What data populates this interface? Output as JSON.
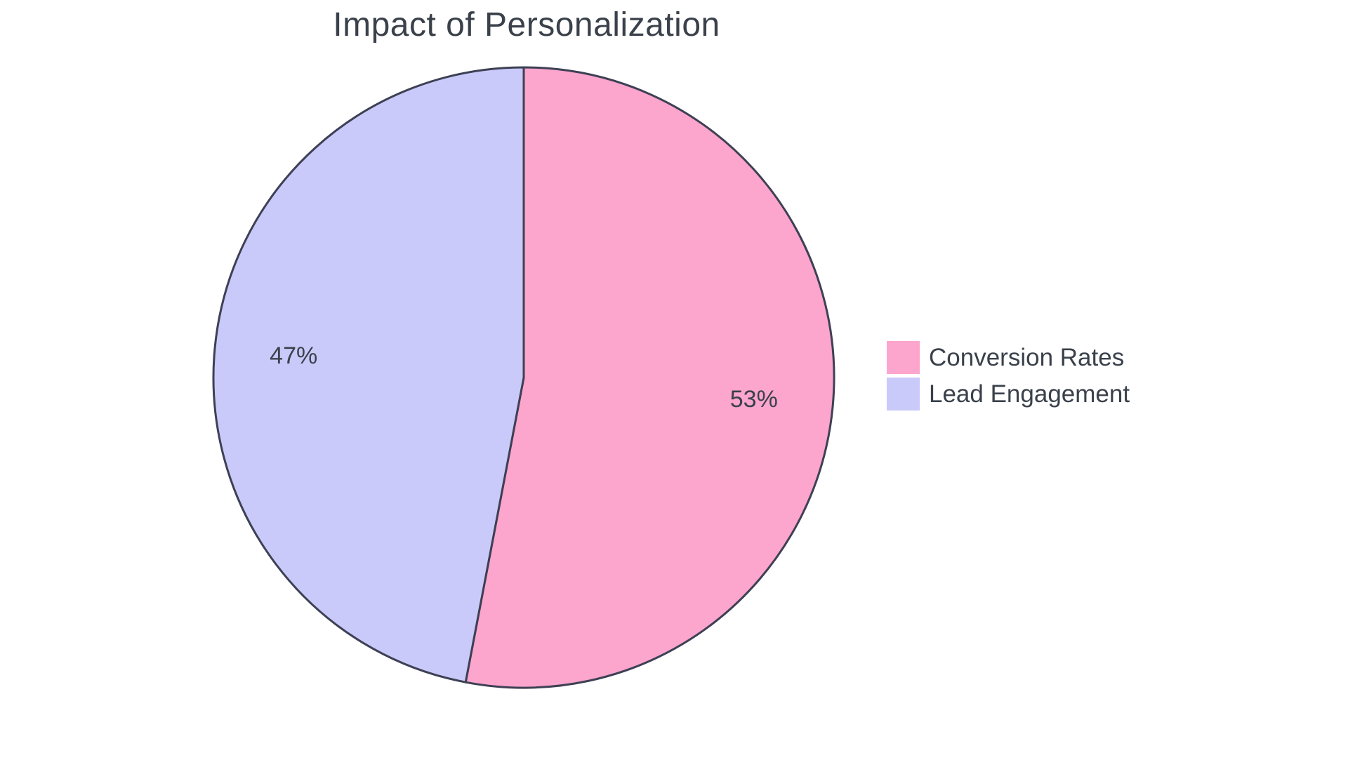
{
  "chart_data": {
    "type": "pie",
    "title": "Impact of Personalization",
    "slices": [
      {
        "label": "Conversion Rates",
        "value": 53,
        "display_label": "53%",
        "color": "#FCA5CD"
      },
      {
        "label": "Lead Engagement",
        "value": 47,
        "display_label": "47%",
        "color": "#C9CAFA"
      }
    ],
    "start_angle_deg": -90,
    "direction": "clockwise",
    "stroke_color": "#3E4054",
    "stroke_width": 3,
    "text_color": "#3A414B",
    "legend_position": "right",
    "background_color": "#FFFFFF"
  }
}
